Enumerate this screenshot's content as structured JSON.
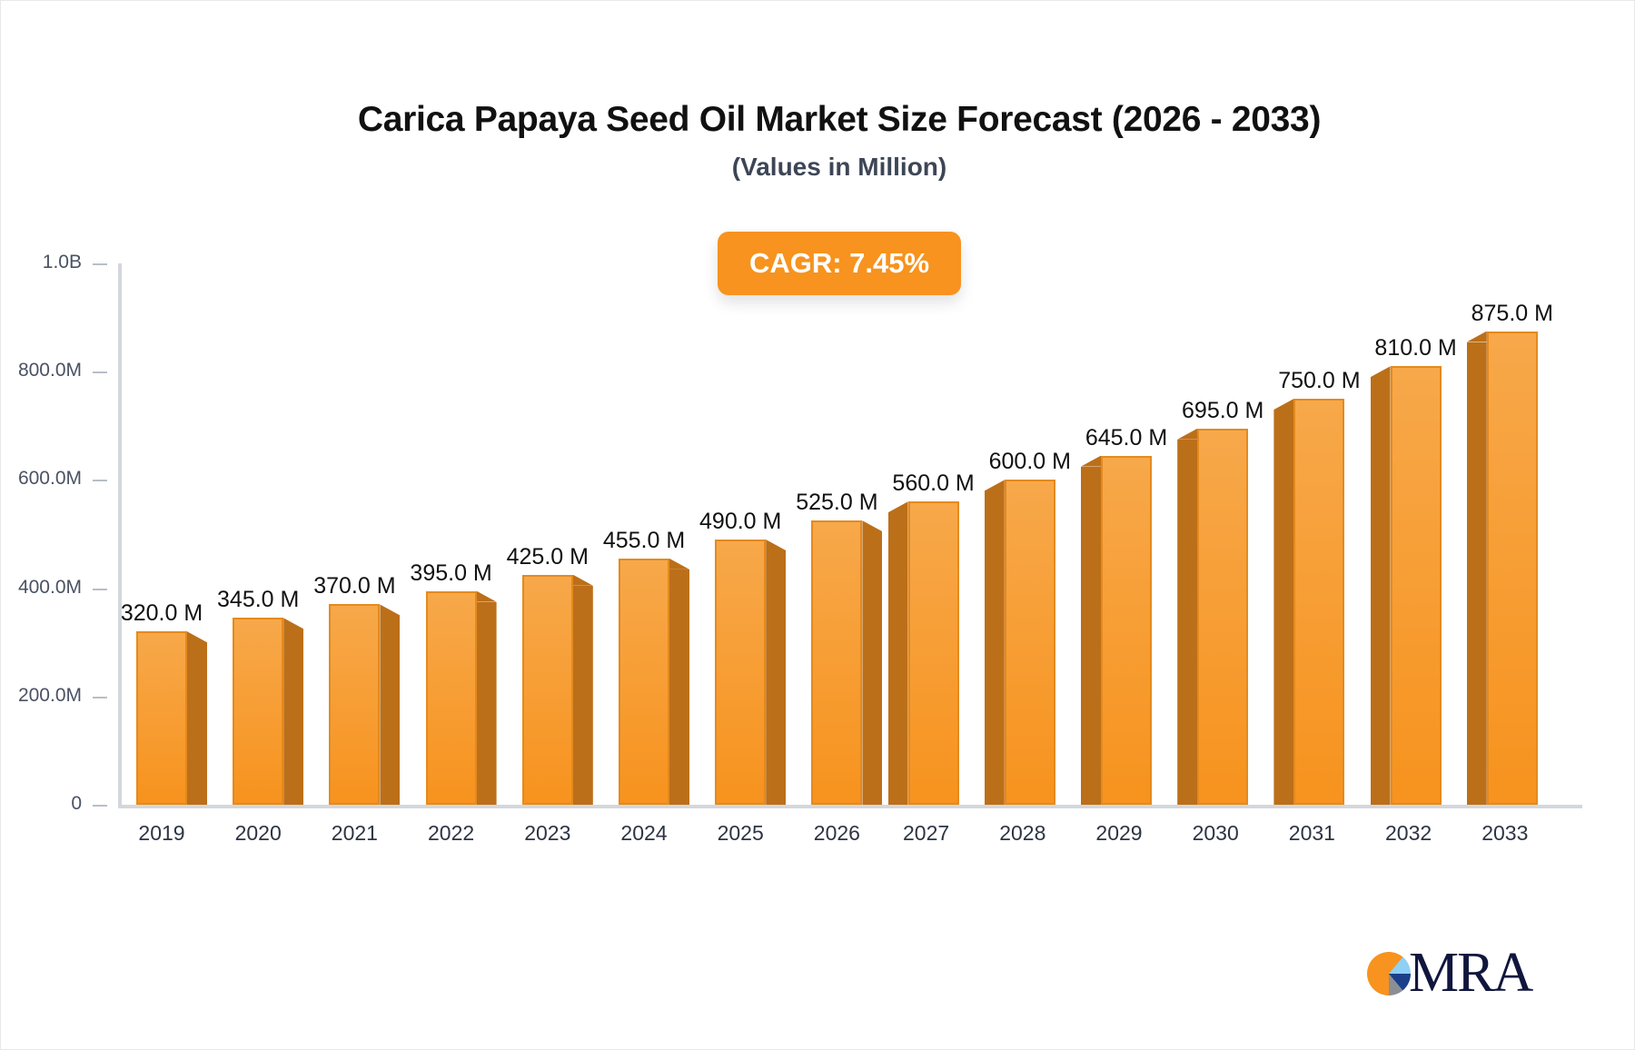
{
  "header": {
    "title": "Carica Papaya Seed Oil Market Size Forecast (2026 - 2033)",
    "subtitle": "(Values in Million)"
  },
  "badge": {
    "cagr_label": "CAGR: 7.45%"
  },
  "axis": {
    "y_ticks": [
      "0",
      "200.0M",
      "400.0M",
      "600.0M",
      "800.0M",
      "1.0B"
    ]
  },
  "bars": [
    {
      "year": "2019",
      "label": "320.0 M"
    },
    {
      "year": "2020",
      "label": "345.0 M"
    },
    {
      "year": "2021",
      "label": "370.0 M"
    },
    {
      "year": "2022",
      "label": "395.0 M"
    },
    {
      "year": "2023",
      "label": "425.0 M"
    },
    {
      "year": "2024",
      "label": "455.0 M"
    },
    {
      "year": "2025",
      "label": "490.0 M"
    },
    {
      "year": "2026",
      "label": "525.0 M"
    },
    {
      "year": "2027",
      "label": "560.0 M"
    },
    {
      "year": "2028",
      "label": "600.0 M"
    },
    {
      "year": "2029",
      "label": "645.0 M"
    },
    {
      "year": "2030",
      "label": "695.0 M"
    },
    {
      "year": "2031",
      "label": "750.0 M"
    },
    {
      "year": "2032",
      "label": "810.0 M"
    },
    {
      "year": "2033",
      "label": "875.0 M"
    }
  ],
  "logo": {
    "text": "MRA"
  },
  "colors": {
    "bar": "#f7931e",
    "bar_side": "#bc6f19",
    "badge": "#f7931e",
    "title": "#111111"
  },
  "chart_data": {
    "type": "bar",
    "title": "Carica Papaya Seed Oil Market Size Forecast (2026 - 2033)",
    "subtitle": "(Values in Million)",
    "categories": [
      "2019",
      "2020",
      "2021",
      "2022",
      "2023",
      "2024",
      "2025",
      "2026",
      "2027",
      "2028",
      "2029",
      "2030",
      "2031",
      "2032",
      "2033"
    ],
    "values": [
      320,
      345,
      370,
      395,
      425,
      455,
      490,
      525,
      560,
      600,
      645,
      695,
      750,
      810,
      875
    ],
    "unit": "Million",
    "xlabel": "",
    "ylabel": "",
    "ylim": [
      0,
      1000
    ],
    "y_tick_labels": [
      "0",
      "200.0M",
      "400.0M",
      "600.0M",
      "800.0M",
      "1.0B"
    ],
    "annotation": "CAGR: 7.45%",
    "grid": false,
    "legend": "none"
  }
}
